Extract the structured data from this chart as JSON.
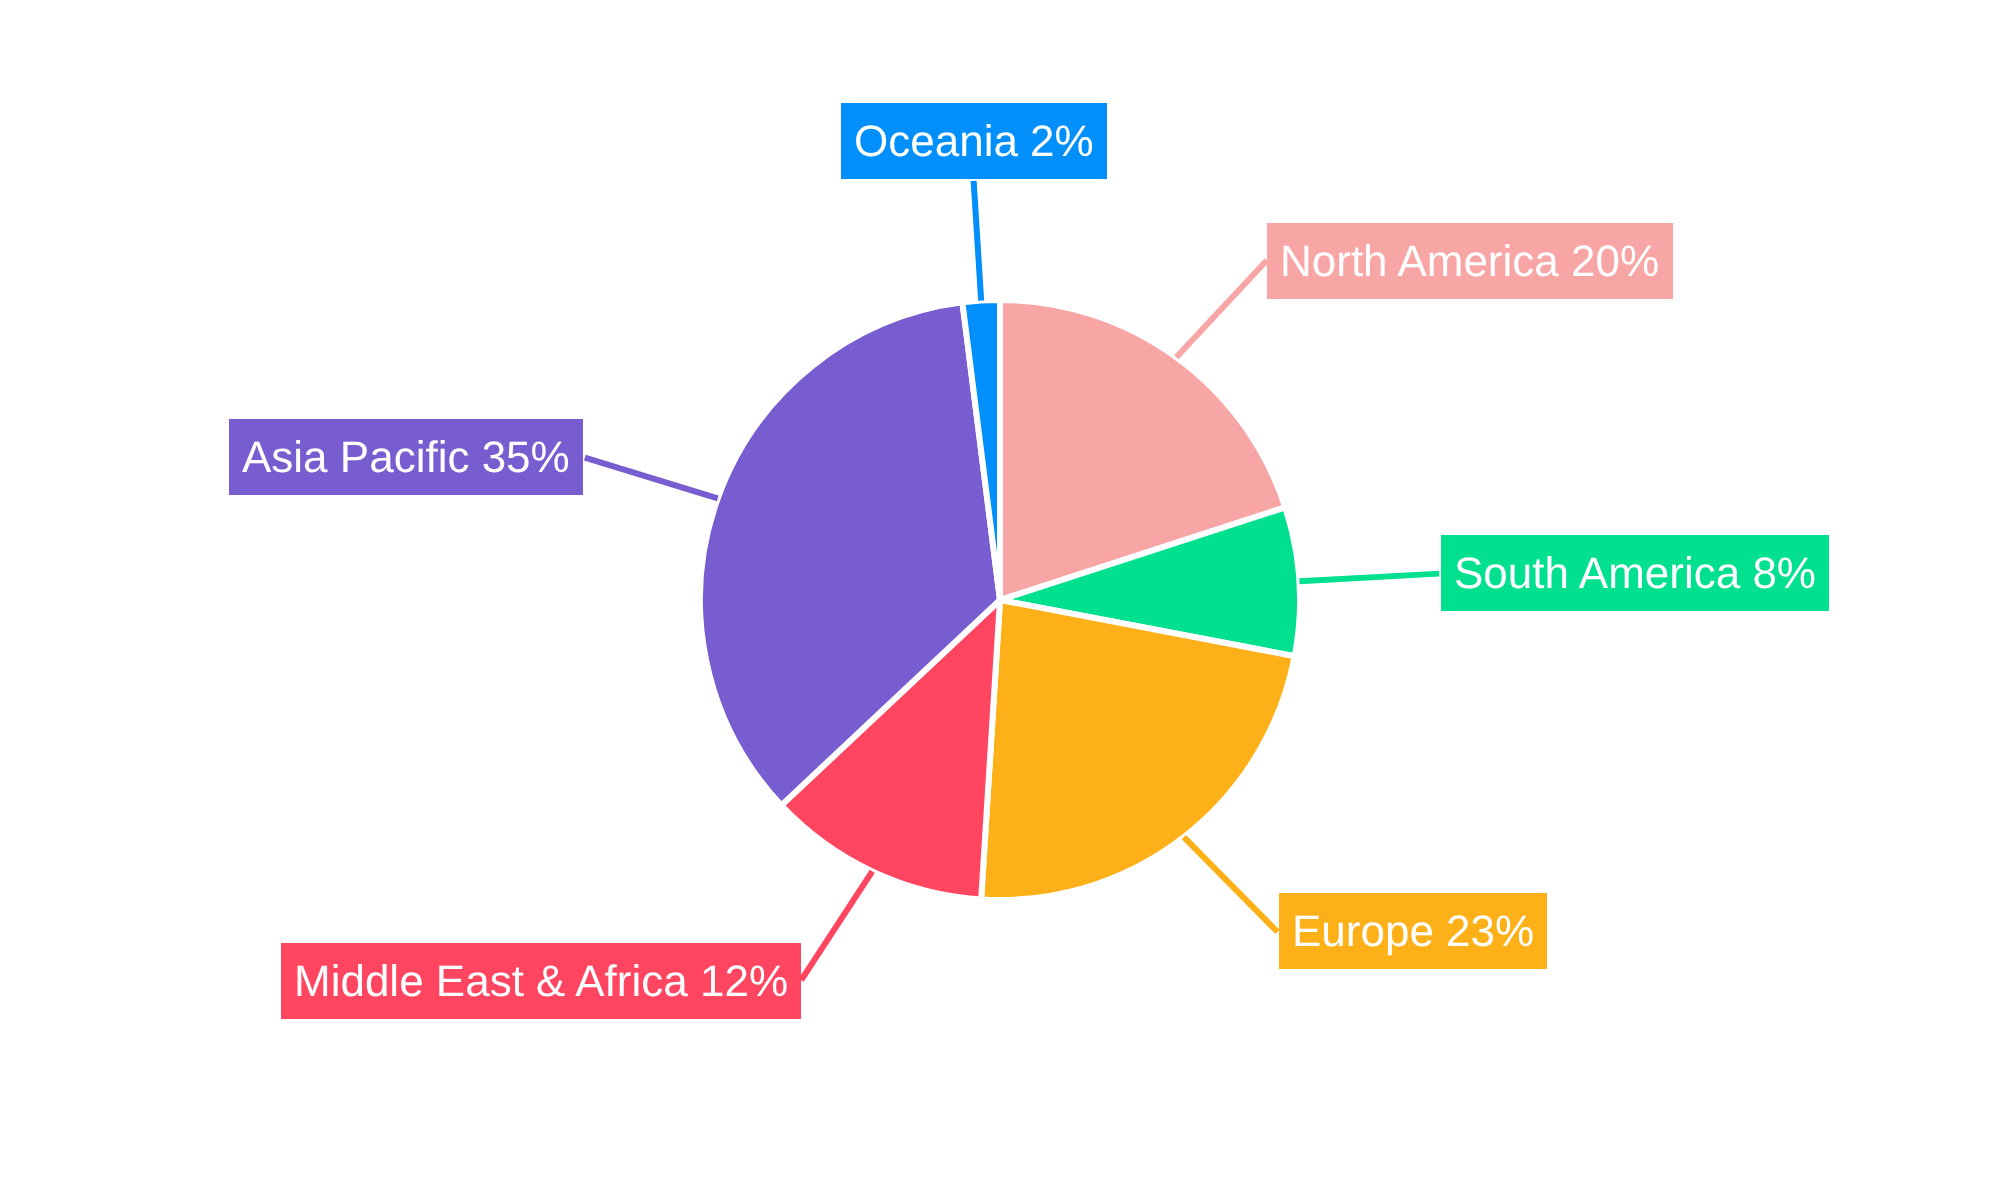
{
  "chart_data": {
    "type": "pie",
    "categories": [
      "North America",
      "South America",
      "Europe",
      "Middle East & Africa",
      "Asia Pacific",
      "Oceania"
    ],
    "values": [
      20,
      8,
      23,
      12,
      35,
      2
    ],
    "value_labels": [
      "20%",
      "8%",
      "23%",
      "12%",
      "35%",
      "2%"
    ],
    "colors": [
      "#f8a5a6",
      "#00e08f",
      "#feb019",
      "#ff4560",
      "#775dd0",
      "#008ffb"
    ],
    "legend": false
  }
}
